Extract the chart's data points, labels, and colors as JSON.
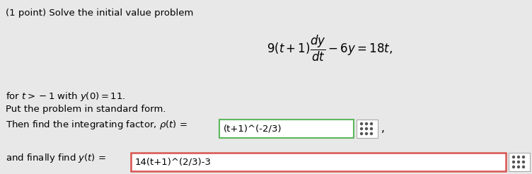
{
  "background_color": "#e8e8e8",
  "title_text": "(1 point) Solve the initial value problem",
  "condition_text": "for $t > -1$ with $y(0) = 11$.",
  "standard_form_text": "Put the problem in standard form.",
  "integrating_label": "Then find the integrating factor, $\\rho(t)\\, =\\,$",
  "integrating_answer": "(t+1)^(-2/3)",
  "final_label": "and finally find $y(t)\\, =\\,$",
  "final_answer": "14(t+1)^(2/3)-3",
  "integrating_border": "#5cb85c",
  "final_border": "#d9534f",
  "fig_width": 7.52,
  "fig_height": 2.46,
  "dpi": 100
}
